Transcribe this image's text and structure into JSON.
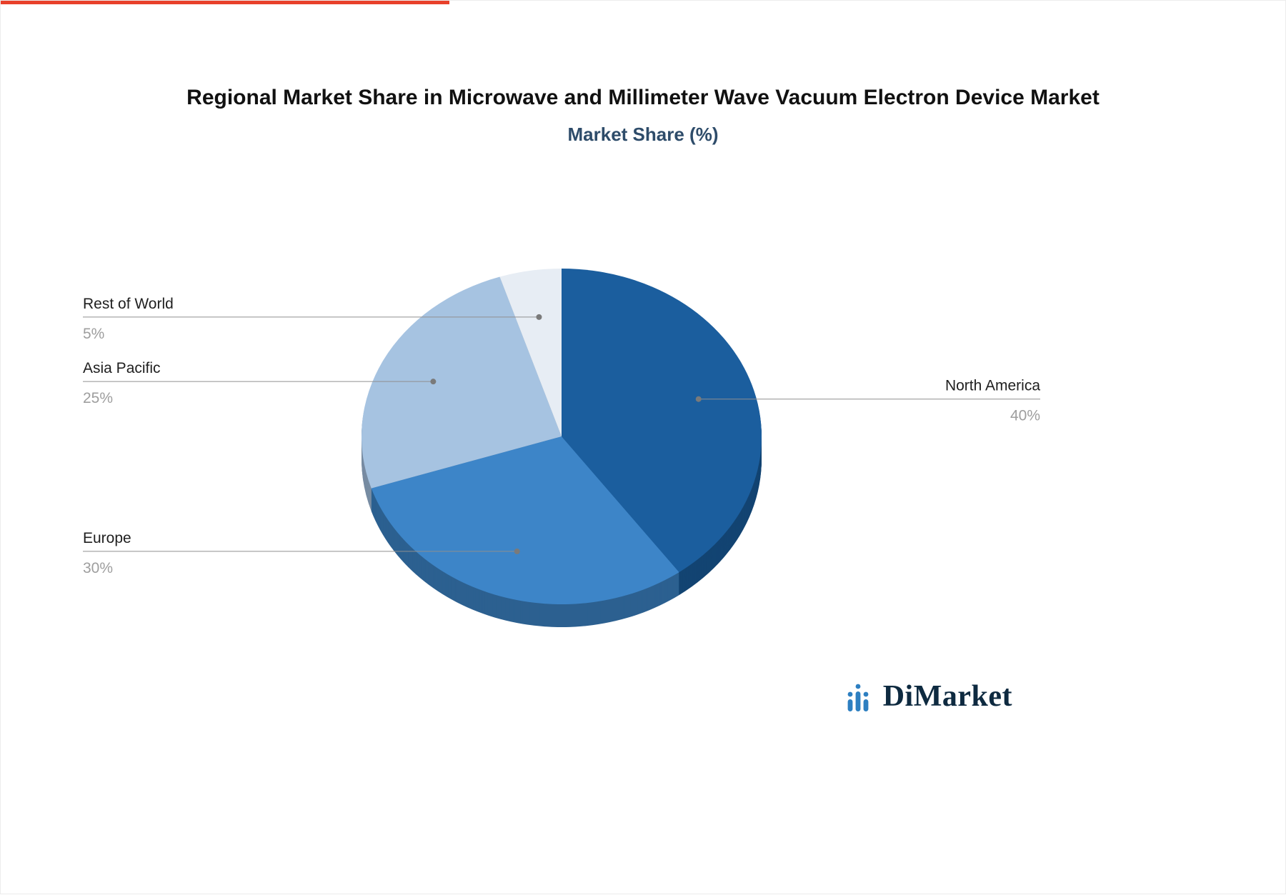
{
  "page": {
    "progress_color": "#e8402a"
  },
  "chart_data": {
    "type": "pie",
    "title": "Regional Market Share in Microwave and Millimeter Wave Vacuum Electron Device Market",
    "subtitle": "Market Share (%)",
    "unit": "%",
    "start_angle_deg": 0,
    "direction": "clockwise",
    "legend_position": "none",
    "label_color": "#1f1f1f",
    "value_color": "#9e9e9e",
    "leader_line_color": "#8f8f8f",
    "segments": [
      {
        "label": "North America",
        "value": 40,
        "display": "40%",
        "color": "#1b5e9e",
        "side": "label-right"
      },
      {
        "label": "Europe",
        "value": 30,
        "display": "30%",
        "color": "#3d85c8",
        "side": "label-left"
      },
      {
        "label": "Asia Pacific",
        "value": 25,
        "display": "25%",
        "color": "#a6c3e1",
        "side": "label-left"
      },
      {
        "label": "Rest of World",
        "value": 5,
        "display": "5%",
        "color": "#e7edf4",
        "side": "label-left"
      }
    ]
  },
  "logo": {
    "text": "DiMarket",
    "color": "#0e2a40",
    "icon": "bar-chart-icon",
    "icon_color": "#2d7fc1"
  }
}
